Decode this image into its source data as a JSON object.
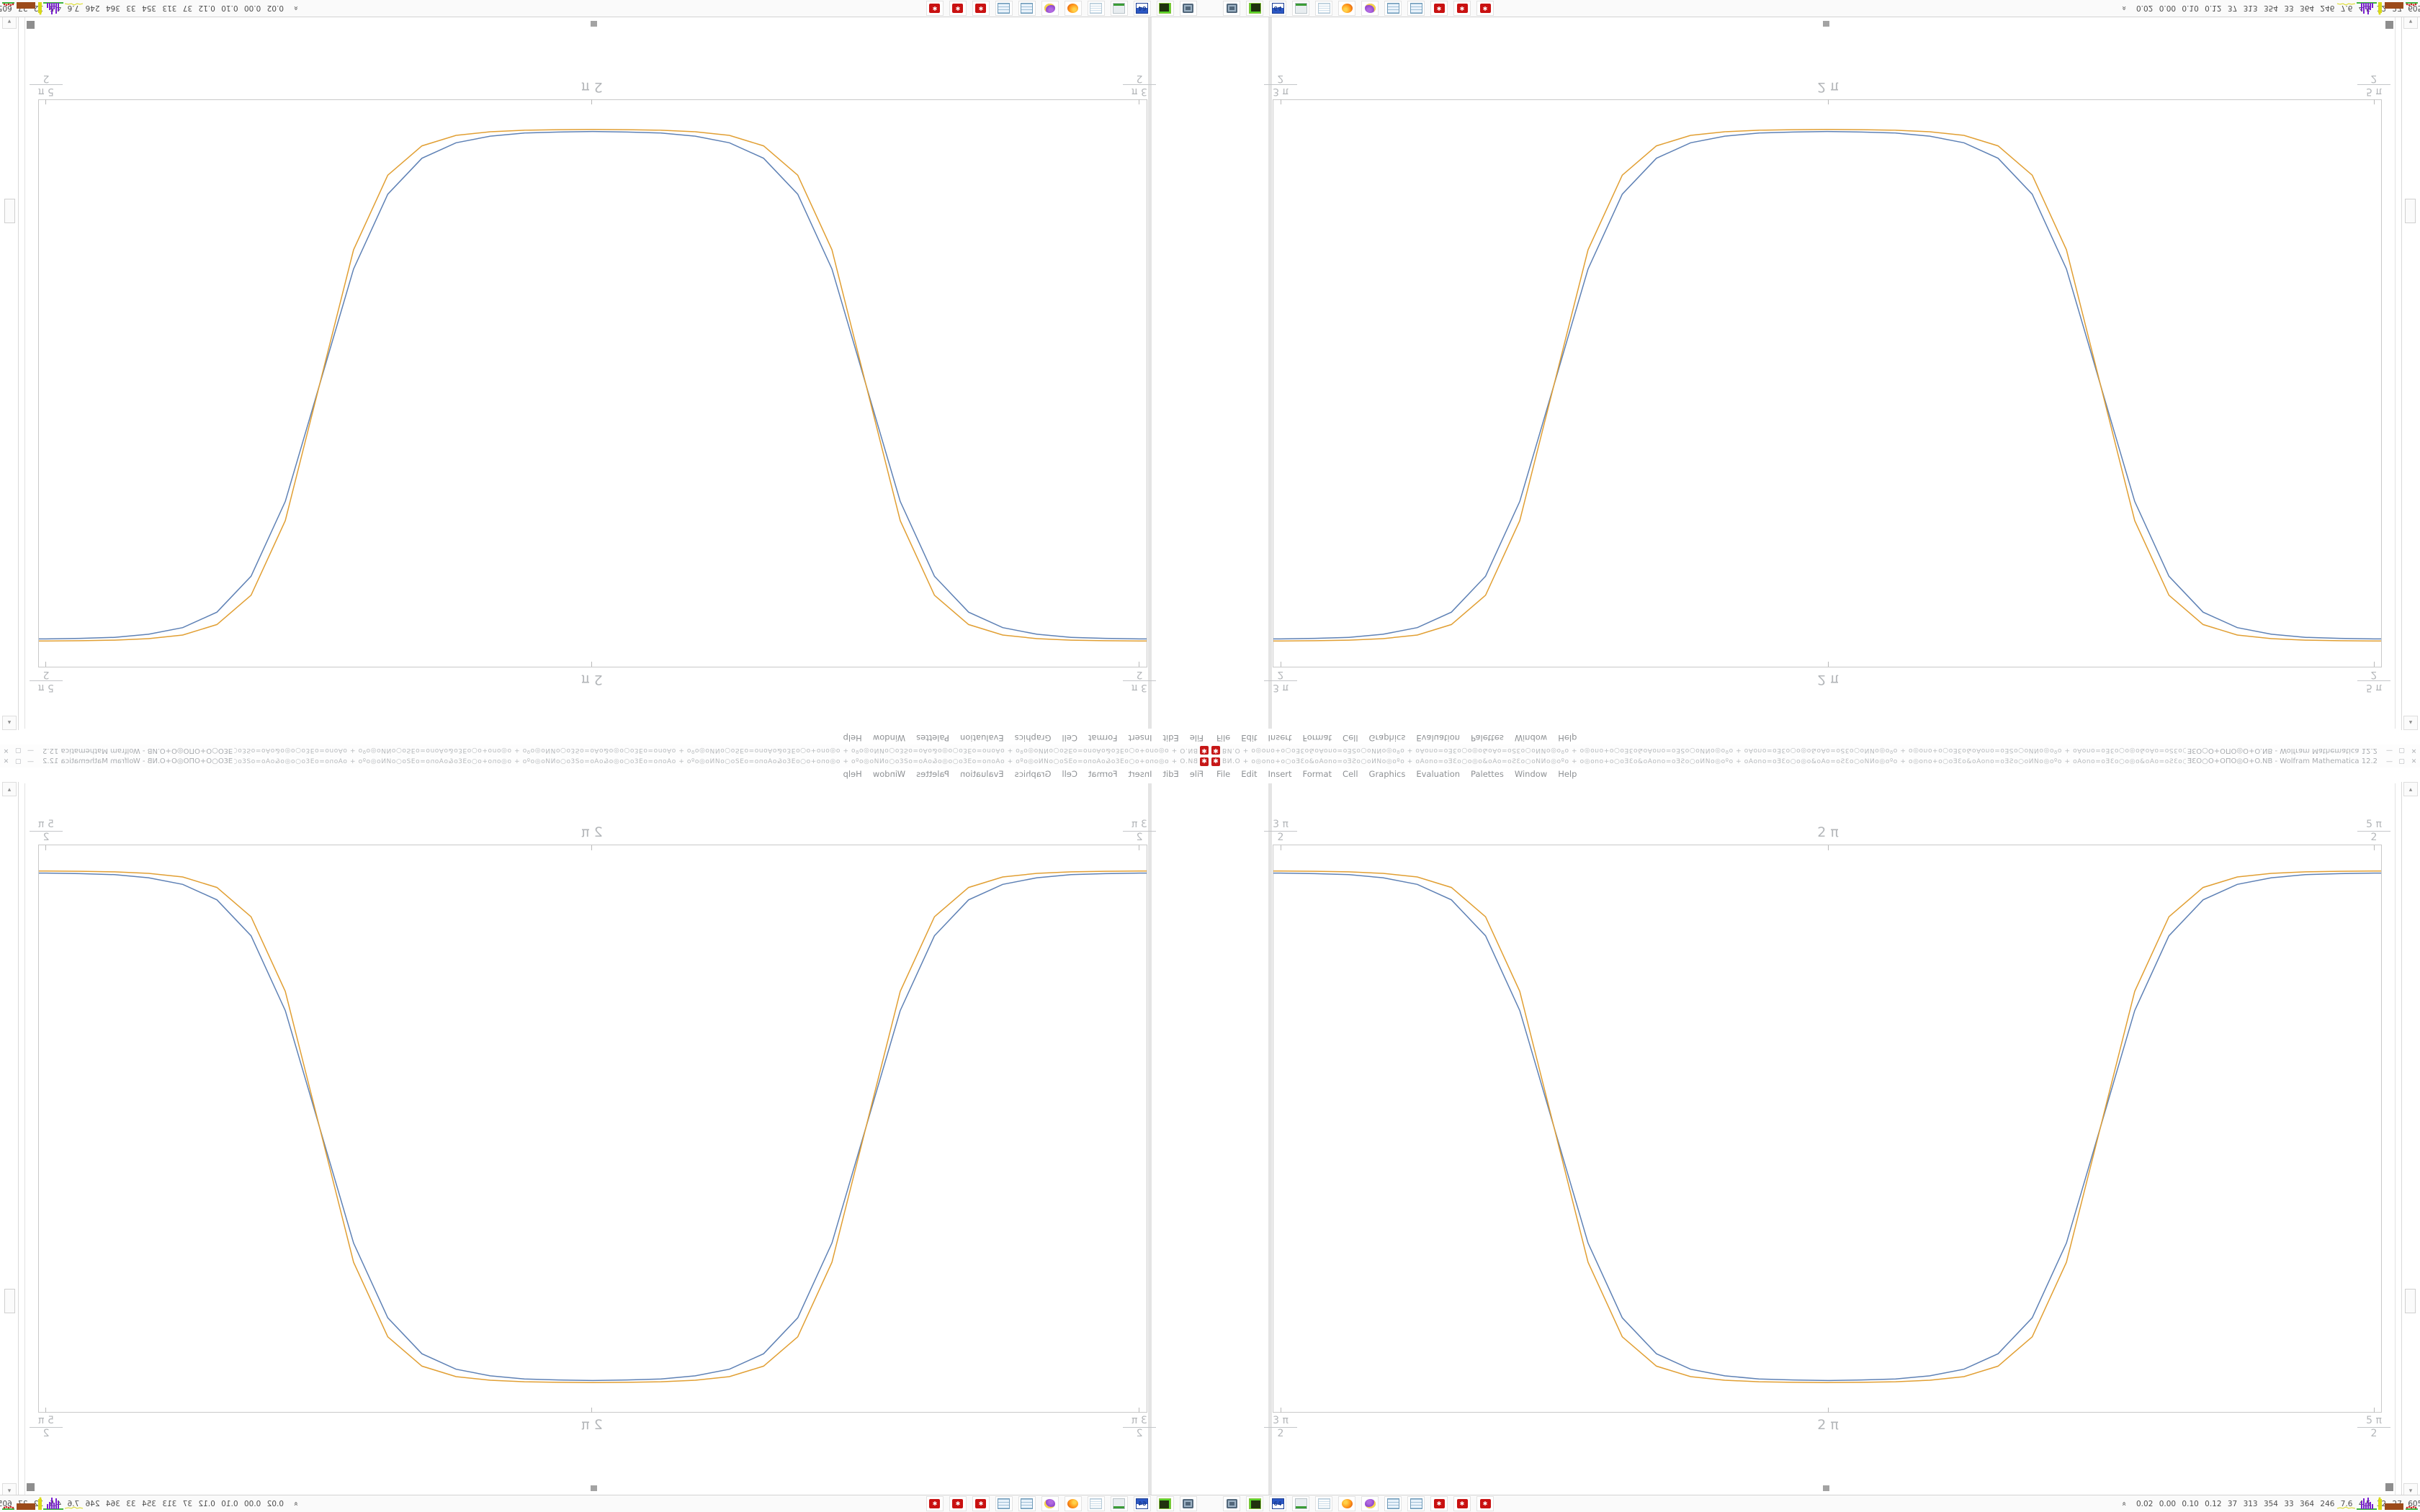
{
  "window": {
    "icon_glyph": "✱",
    "title_glyphs": "BИ.O + o◎ono+o○oƎƐo&oAono=oƎƧo○oИNo◎oºo + oAono=oƎƐo○o◎o&oAo=oƧƐo○oNИo◎oºo + o◎ono+o○oƎƐo&oAono=oƎƧo○oИNo◎oºo + oAono=oƎƐo○o◎o&oAo=oƧƐo○oNИo◎oºo + o◎ono+o○oƎƐo&oAono=oƎƧo○oИNo◎oºo + oAono=oƎƐo○o◎o&oAo=oƧƐo○oNИo◎oºo + o◎ono+o○oƎƐo&oAono=oƎƧo",
    "title_end": "ƎƐO○O+OПO◎O+O.NB - Wolfram Mathematica 12.2",
    "buttons": {
      "minimize": "—",
      "maximize": "▢",
      "close": "✕"
    },
    "menu": [
      "File",
      "Edit",
      "Insert",
      "Format",
      "Cell",
      "Graphics",
      "Evaluation",
      "Palettes",
      "Window",
      "Help"
    ]
  },
  "plot": {
    "top_left_frac": {
      "num": "3 π",
      "den": "2"
    },
    "top_center": "2 π",
    "top_right_frac": {
      "num": "5 π",
      "den": "2"
    },
    "bottom_left_frac": {
      "num": "3 π",
      "den": "2"
    },
    "bottom_center": "2 π",
    "bottom_right_frac": {
      "num": "5 π",
      "den": "2"
    }
  },
  "chart_data": {
    "type": "line",
    "title": "",
    "xlabel": "",
    "ylabel": "",
    "x_unit": "π",
    "x_ticks": [
      "3π/2",
      "2π",
      "5π/2"
    ],
    "x_range_pi": [
      1.5,
      2.5
    ],
    "ylim": [
      -1.1,
      1.1
    ],
    "grid": false,
    "frame": true,
    "legend": null,
    "x_pi": [
      1.485,
      1.5,
      1.53125,
      1.5625,
      1.59375,
      1.625,
      1.65625,
      1.6875,
      1.71875,
      1.75,
      1.78125,
      1.8125,
      1.84375,
      1.875,
      1.90625,
      1.9375,
      1.96875,
      2.0,
      2.03125,
      2.0625,
      2.09375,
      2.125,
      2.15625,
      2.1875,
      2.21875,
      2.25,
      2.28125,
      2.3125,
      2.34375,
      2.375,
      2.40625,
      2.4375,
      2.46875,
      2.5,
      2.515
    ],
    "series": [
      {
        "name": "curve-blue",
        "color": "#5e81b5",
        "y": [
          0.987,
          0.987,
          0.985,
          0.981,
          0.969,
          0.943,
          0.883,
          0.743,
          0.452,
          0,
          -0.452,
          -0.743,
          -0.883,
          -0.943,
          -0.969,
          -0.981,
          -0.985,
          -0.987,
          -0.985,
          -0.981,
          -0.969,
          -0.943,
          -0.883,
          -0.743,
          -0.452,
          0,
          0.452,
          0.743,
          0.883,
          0.943,
          0.969,
          0.981,
          0.985,
          0.987,
          0.987
        ]
      },
      {
        "name": "curve-orange",
        "color": "#e19f33",
        "y": [
          0.995,
          0.995,
          0.994,
          0.992,
          0.986,
          0.972,
          0.931,
          0.817,
          0.527,
          0,
          -0.527,
          -0.817,
          -0.931,
          -0.972,
          -0.986,
          -0.992,
          -0.994,
          -0.995,
          -0.994,
          -0.992,
          -0.986,
          -0.972,
          -0.931,
          -0.817,
          -0.527,
          0,
          0.527,
          0.817,
          0.931,
          0.972,
          0.986,
          0.992,
          0.994,
          0.995,
          0.995
        ]
      }
    ]
  },
  "scrollbar": {
    "up_glyph": "▴",
    "down_glyph": "▾"
  },
  "taskbar": {
    "chevron": "«",
    "stats": "0.02 0.00 0.10 0.12  37  313 354  33  364 246  7.6  4.5  32  27  6050 7160",
    "icons": [
      {
        "name": "system-monitor-icon",
        "cls": "i-monitor"
      },
      {
        "name": "green-terminal-icon",
        "cls": "i-termgreen"
      },
      {
        "name": "floppy-disk-icon",
        "cls": "i-floppy",
        "label": "64"
      },
      {
        "name": "resource-monitor-icon",
        "cls": "i-sysmon"
      },
      {
        "name": "notepad-icon",
        "cls": "i-notepad"
      },
      {
        "name": "firefox-icon",
        "cls": "i-firefox"
      },
      {
        "name": "purple-app-icon",
        "cls": "i-purple"
      },
      {
        "name": "terminal-icon",
        "cls": "i-termblue"
      },
      {
        "name": "terminal-icon",
        "cls": "i-termblue"
      },
      {
        "name": "mathematica-spikey-icon",
        "cls": "i-spikey",
        "glyph": "✱"
      },
      {
        "name": "mathematica-spikey-icon",
        "cls": "i-spikey",
        "glyph": "✱"
      },
      {
        "name": "mathematica-spikey-icon",
        "cls": "i-spikey",
        "glyph": "✱"
      }
    ],
    "graph_colors": {
      "yellow": "#d9d918",
      "purple": "#7a1fd0",
      "green": "#3db53d",
      "brown": "#9c4a1a",
      "red": "#cc2222"
    }
  }
}
